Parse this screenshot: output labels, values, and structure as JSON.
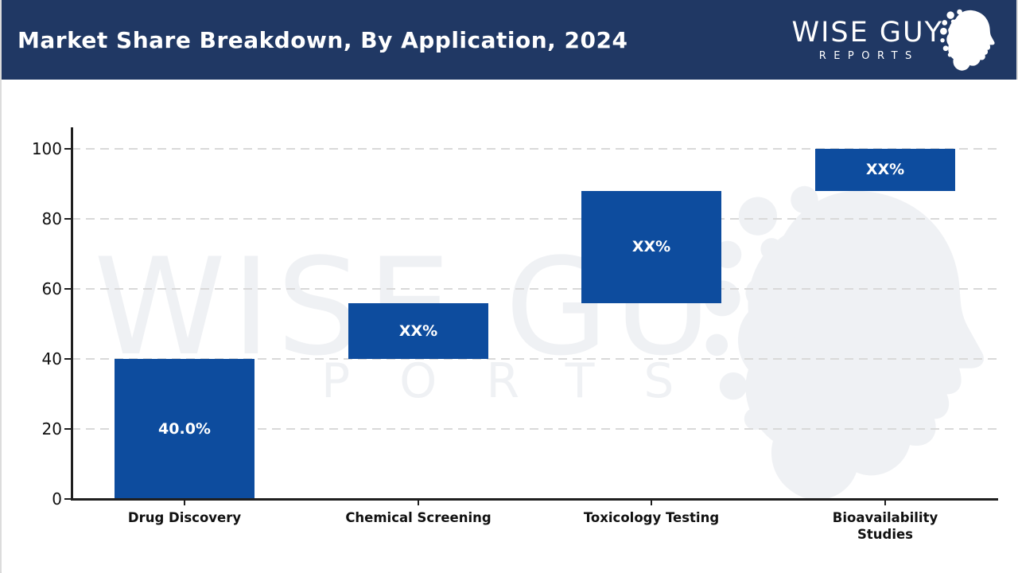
{
  "header": {
    "title": "Market Share Breakdown, By Application, 2024"
  },
  "logo": {
    "brand_top": "WISE GUY",
    "brand_bottom": "REPORTS",
    "head_icon": "dotted-head-profile-icon"
  },
  "watermark": {
    "text_top": "WISE GU",
    "text_bottom": "PORTS",
    "head_icon": "dotted-head-profile-icon"
  },
  "colors": {
    "header_bg": "#203864",
    "bar": "#0d4c9e",
    "bar_label": "#ffffff",
    "grid": "#d9d9d9",
    "axis": "#1f1f1f",
    "watermark": "#eff1f4",
    "frame_border": "#dcdcdc"
  },
  "chart_data": {
    "type": "bar",
    "subtype": "waterfall",
    "title": "Market Share Breakdown, By Application, 2024",
    "categories": [
      "Drug Discovery",
      "Chemical Screening",
      "Toxicology Testing",
      "Bioavailability Studies"
    ],
    "category_lines": [
      [
        "Drug Discovery"
      ],
      [
        "Chemical Screening"
      ],
      [
        "Toxicology Testing"
      ],
      [
        "Bioavailability",
        "Studies"
      ]
    ],
    "segments": [
      {
        "category": "Drug Discovery",
        "start": 0,
        "end": 40,
        "value": 40,
        "label": "40.0%"
      },
      {
        "category": "Chemical Screening",
        "start": 40,
        "end": 56,
        "value": 16,
        "label": "XX%"
      },
      {
        "category": "Toxicology Testing",
        "start": 56,
        "end": 88,
        "value": 32,
        "label": "XX%"
      },
      {
        "category": "Bioavailability Studies",
        "start": 88,
        "end": 100,
        "value": 12,
        "label": "XX%"
      }
    ],
    "xlabel": "",
    "ylabel": "",
    "yticks": [
      0,
      20,
      40,
      60,
      80,
      100
    ],
    "ylim": [
      0,
      106
    ],
    "grid": "horizontal-dashed",
    "legend": "none"
  }
}
